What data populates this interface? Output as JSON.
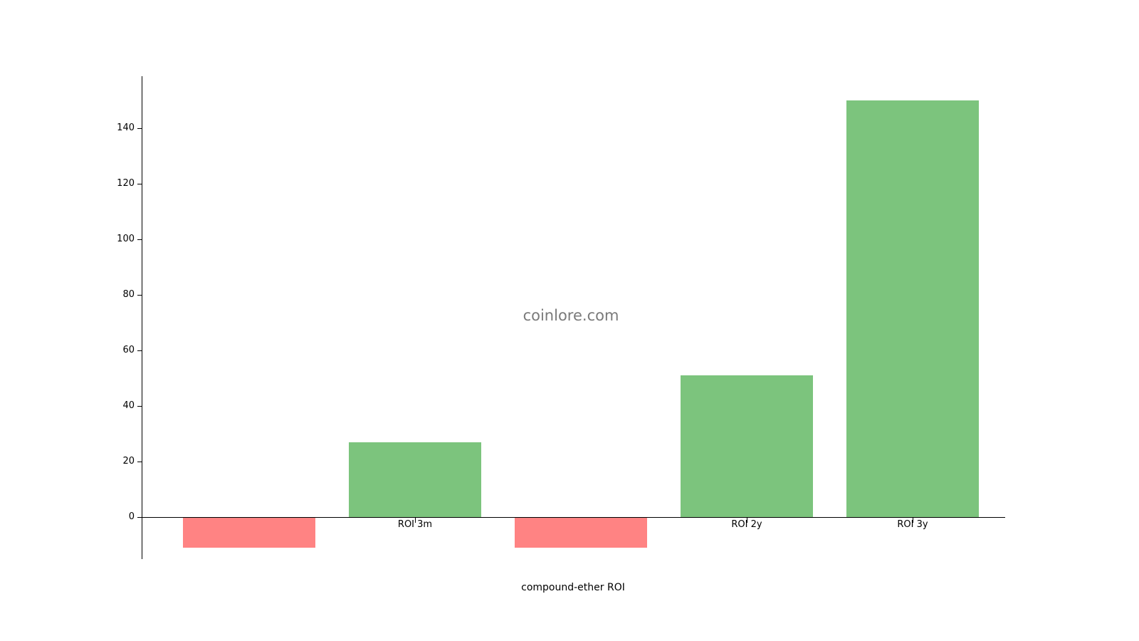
{
  "chart_data": {
    "type": "bar",
    "title": "compound-ether ROI",
    "watermark": "coinlore.com",
    "categories": [
      "",
      "ROI 3m",
      "",
      "ROI 2y",
      "ROI 3y"
    ],
    "values": [
      -11,
      27,
      -11,
      51,
      150
    ],
    "colors": {
      "positive": "#7cc47d",
      "negative": "#ff8383",
      "axis": "#000000",
      "watermark": "#7a7a7a",
      "tick_label": "#000000"
    },
    "yticks": [
      0,
      20,
      40,
      60,
      80,
      100,
      120,
      140
    ],
    "ylim": [
      -15,
      159
    ],
    "xlabel": "",
    "ylabel": "",
    "grid": false,
    "legend_position": "none",
    "hidden_category_label_indices": [
      0,
      2
    ]
  }
}
